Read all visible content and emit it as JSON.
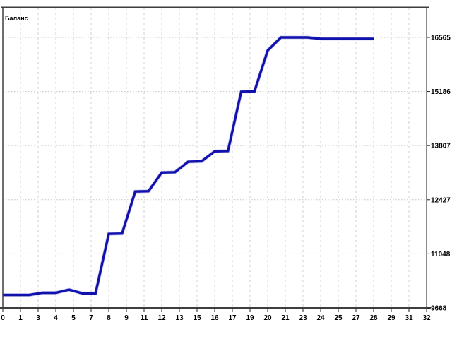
{
  "chart_data": {
    "type": "line",
    "title": "Баланс",
    "legend_position": "top-left",
    "grid": true,
    "x_axis": {
      "min": 0,
      "max": 32,
      "tick_labels": [
        "0",
        "1",
        "3",
        "4",
        "5",
        "7",
        "8",
        "9",
        "11",
        "12",
        "13",
        "15",
        "16",
        "17",
        "19",
        "20",
        "21",
        "23",
        "24",
        "25",
        "27",
        "28",
        "29",
        "31",
        "32"
      ]
    },
    "y_axis": {
      "min": 9668,
      "max": 16565,
      "tick_values": [
        9668,
        11048,
        12427,
        13807,
        15186,
        16565
      ],
      "tick_labels": [
        "9668",
        "11048",
        "12427",
        "13807",
        "15186",
        "16565"
      ]
    },
    "series": [
      {
        "name": "Баланс",
        "color": "#1111ae",
        "points": [
          [
            0,
            10000
          ],
          [
            1,
            10000
          ],
          [
            2,
            10000
          ],
          [
            3,
            10055
          ],
          [
            4,
            10055
          ],
          [
            5,
            10135
          ],
          [
            6,
            10040
          ],
          [
            7,
            10040
          ],
          [
            8,
            11555
          ],
          [
            9,
            11565
          ],
          [
            10,
            12635
          ],
          [
            11,
            12645
          ],
          [
            12,
            13120
          ],
          [
            13,
            13130
          ],
          [
            14,
            13395
          ],
          [
            15,
            13405
          ],
          [
            16,
            13660
          ],
          [
            17,
            13670
          ],
          [
            18,
            15180
          ],
          [
            19,
            15190
          ],
          [
            20,
            16230
          ],
          [
            21,
            16565
          ],
          [
            22,
            16565
          ],
          [
            23,
            16565
          ],
          [
            24,
            16530
          ],
          [
            25,
            16530
          ],
          [
            26,
            16530
          ],
          [
            27,
            16530
          ],
          [
            28,
            16530
          ]
        ]
      }
    ]
  },
  "colors": {
    "line": "#1111ae",
    "line_halo": "#9a9ade",
    "grid_vertical": "#cfcfcf",
    "grid_horizontal": "#c4c4c4",
    "frame": "#3e3e3e",
    "frame_light": "#b8b8b8",
    "tick": "#222222",
    "background": "#ffffff",
    "text": "#000000"
  }
}
